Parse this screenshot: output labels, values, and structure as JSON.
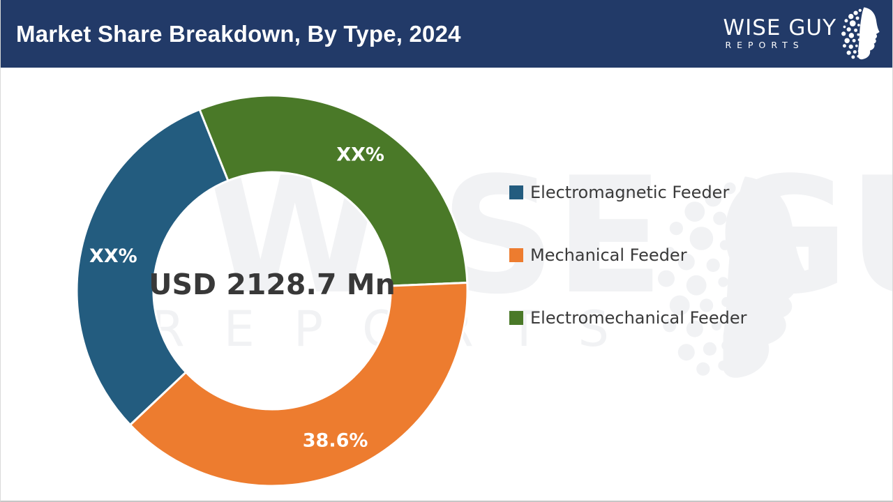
{
  "header": {
    "title": "Market Share Breakdown, By Type, 2024",
    "logo": {
      "line1": "WISE GUY",
      "line2": "REPORTS",
      "face_icon": "face-profile-dots-icon"
    }
  },
  "chart_data": {
    "type": "pie",
    "subtype": "donut",
    "title": "Market Share Breakdown, By Type, 2024",
    "center_label": "USD 2128.7 Mn",
    "legend_position": "right",
    "segments": [
      {
        "label": "Electromagnetic Feeder",
        "display_value": "XX%",
        "value_pct": 31.0,
        "value_is_masked": true,
        "color": "#235C7F"
      },
      {
        "label": "Mechanical Feeder",
        "display_value": "38.6%",
        "value_pct": 38.6,
        "value_is_masked": false,
        "color": "#ED7C2F"
      },
      {
        "label": "Electromechanical Feeder",
        "display_value": "XX%",
        "value_pct": 30.4,
        "value_is_masked": true,
        "color": "#4A7928"
      }
    ]
  },
  "watermark": {
    "line1": "WISE GUY",
    "line2": "REPORTS"
  },
  "colors": {
    "header_bg": "#223A68",
    "slice_gap": "#ffffff",
    "text_dark": "#383838",
    "watermark_gray": "#f1f2f4"
  }
}
